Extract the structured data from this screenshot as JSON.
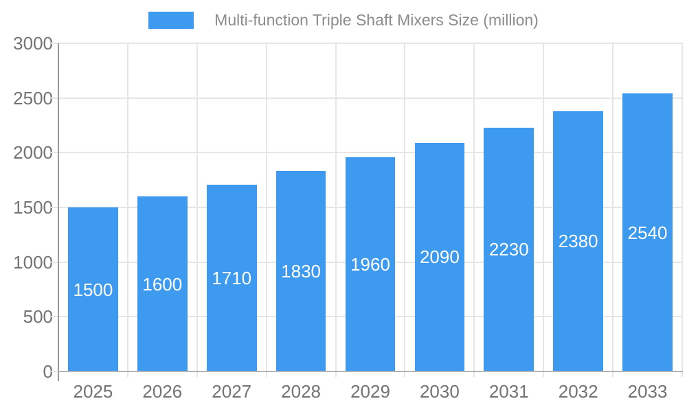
{
  "legend": {
    "label": "Multi-function Triple Shaft Mixers Size (million)",
    "swatch_color": "#3d9aee"
  },
  "chart_data": {
    "type": "bar",
    "title": "",
    "xlabel": "",
    "ylabel": "",
    "categories": [
      "2025",
      "2026",
      "2027",
      "2028",
      "2029",
      "2030",
      "2031",
      "2032",
      "2033"
    ],
    "series": [
      {
        "name": "Multi-function Triple Shaft Mixers Size (million)",
        "values": [
          1500,
          1600,
          1710,
          1830,
          1960,
          2090,
          2230,
          2380,
          2540
        ]
      }
    ],
    "ylim": [
      0,
      3000
    ],
    "y_tick_step": 500,
    "y_tick_labels": [
      "0",
      "500",
      "1000",
      "1500",
      "2000",
      "2500",
      "3000"
    ],
    "grid": true,
    "legend_position": "top",
    "value_labels": "centered-inside-bars"
  },
  "colors": {
    "bar": "#3d9aee",
    "gridline": "#e6e6e6",
    "y_axis_line": "#999999",
    "x_axis_line": "#b3b3b3",
    "axis_label_text": "#737373",
    "legend_text": "#8c8c8c",
    "value_label_text": "#ffffff",
    "background": "#ffffff"
  }
}
